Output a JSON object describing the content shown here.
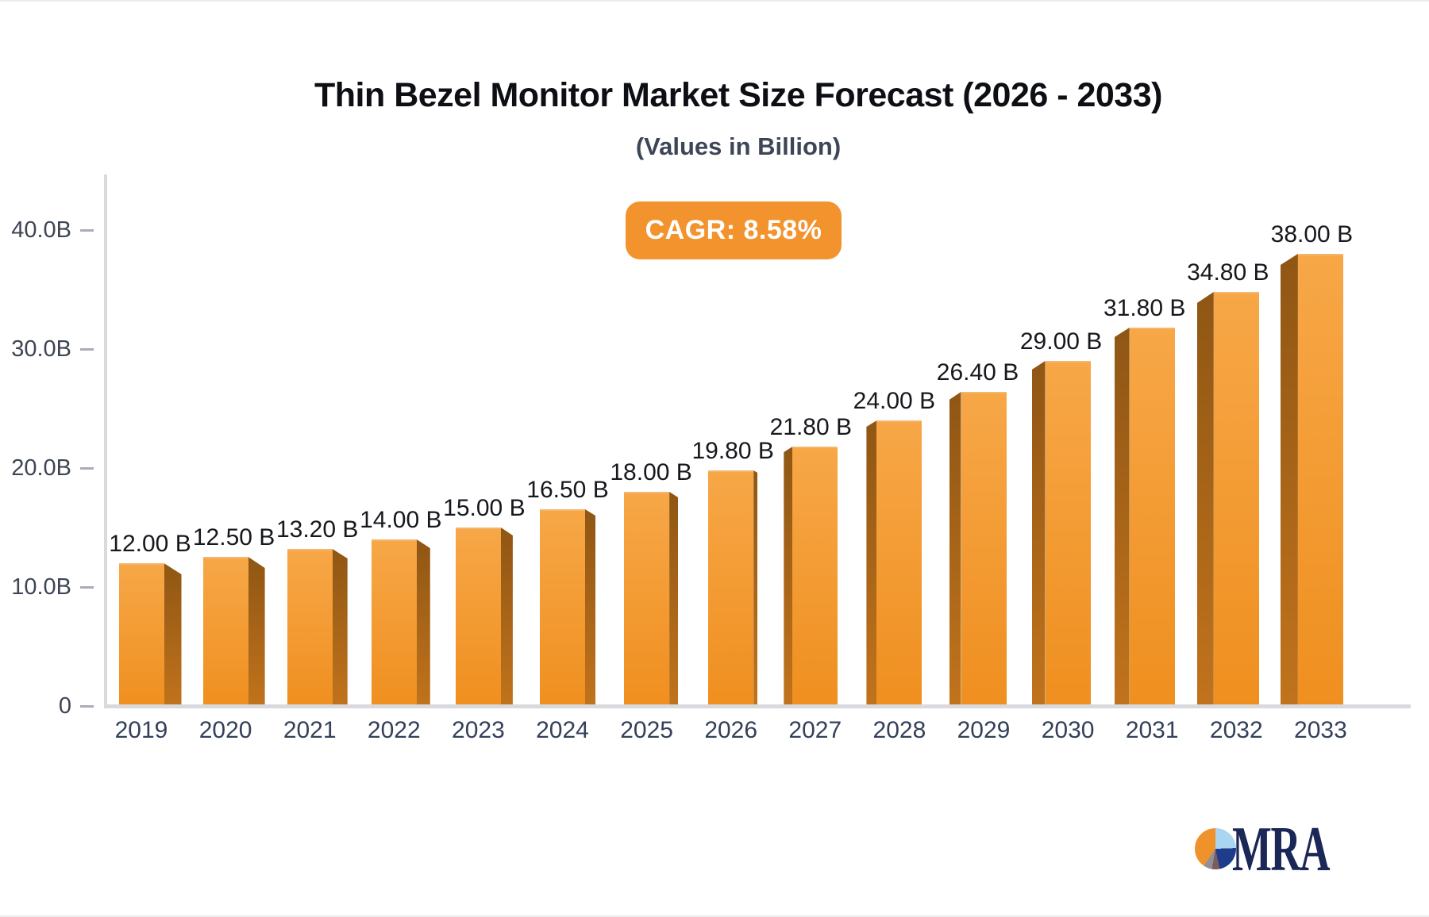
{
  "chart_data": {
    "type": "bar",
    "title": "Thin Bezel Monitor Market Size Forecast (2026 - 2033)",
    "subtitle": "(Values in Billion)",
    "cagr_label": "CAGR: 8.58%",
    "categories": [
      "2019",
      "2020",
      "2021",
      "2022",
      "2023",
      "2024",
      "2025",
      "2026",
      "2027",
      "2028",
      "2029",
      "2030",
      "2031",
      "2032",
      "2033"
    ],
    "values": [
      12.0,
      12.5,
      13.2,
      14.0,
      15.0,
      16.5,
      18.0,
      19.8,
      21.8,
      24.0,
      26.4,
      29.0,
      31.8,
      34.8,
      38.0
    ],
    "value_labels": [
      "12.00 B",
      "12.50 B",
      "13.20 B",
      "14.00 B",
      "15.00 B",
      "16.50 B",
      "18.00 B",
      "19.80 B",
      "21.80 B",
      "24.00 B",
      "26.40 B",
      "29.00 B",
      "31.80 B",
      "34.80 B",
      "38.00 B"
    ],
    "y_ticks": [
      {
        "label": "40.0B",
        "value": 40
      },
      {
        "label": "30.0B",
        "value": 30
      },
      {
        "label": "20.0B",
        "value": 20
      },
      {
        "label": "10.0B",
        "value": 10
      },
      {
        "label": "0",
        "value": 0
      }
    ],
    "ylim": [
      0,
      40
    ],
    "xlabel": "",
    "ylabel": "",
    "grid": false,
    "legend": false,
    "bar_style": "3d-perspective"
  },
  "logo": {
    "text": "MRA"
  },
  "colors": {
    "bar_front_top": "#F7A747",
    "bar_front_bottom": "#EF8F1F",
    "bar_side_top": "#8F5614",
    "bar_side_bottom": "#C1731C",
    "badge_bg": "#F2932D",
    "badge_text": "#FFFFFF",
    "title": "#0D0F14",
    "subtitle": "#3D4657",
    "tick_label": "#3E4554",
    "year_label": "#34405A",
    "value_label": "#16181D",
    "axis_line": "#D9DADE",
    "tick_dash": "#A9ADB6",
    "logo_orange": "#F0922B",
    "logo_blue": "#A9D5F0",
    "logo_navy_wedge": "#1D3C8C",
    "logo_gray": "#90909A",
    "logo_maroon": "#7C5B5E",
    "logo_text": "#1B2756",
    "frame": "#ECECEC"
  }
}
